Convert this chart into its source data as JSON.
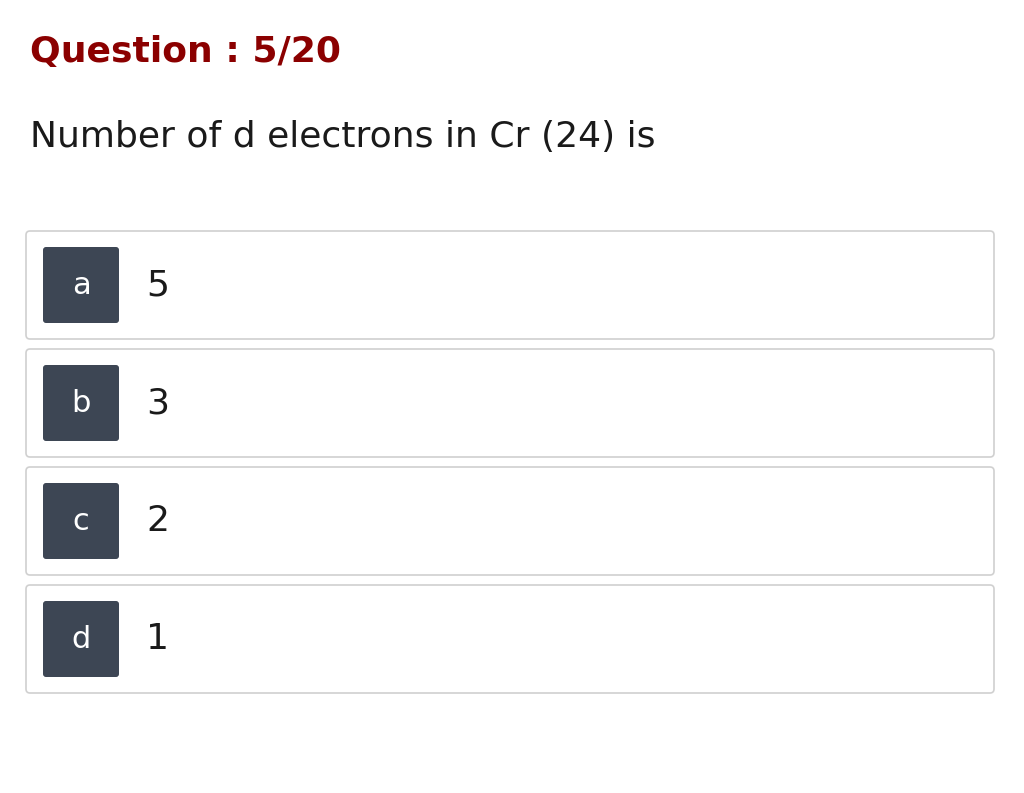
{
  "title": "Question : 5/20",
  "title_color": "#8B0000",
  "question": "Number of d electrons in Cr (24) is",
  "question_color": "#1a1a1a",
  "options": [
    {
      "label": "a",
      "text": "5"
    },
    {
      "label": "b",
      "text": "3"
    },
    {
      "label": "c",
      "text": "2"
    },
    {
      "label": "d",
      "text": "1"
    }
  ],
  "label_bg_color": "#3d4654",
  "label_text_color": "#ffffff",
  "option_box_facecolor": "#ffffff",
  "option_box_edgecolor": "#d0d0d0",
  "background_color": "#ffffff",
  "title_fontsize": 26,
  "question_fontsize": 26,
  "option_label_fontsize": 22,
  "option_text_fontsize": 26,
  "fig_width": 10.24,
  "fig_height": 7.93,
  "dpi": 100
}
